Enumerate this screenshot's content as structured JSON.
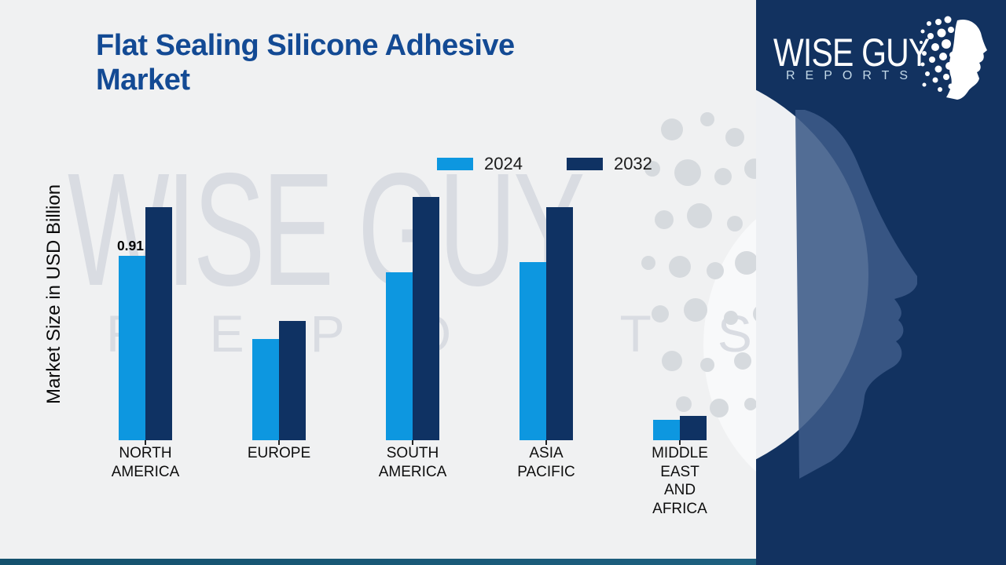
{
  "page": {
    "background": "#f0f1f2"
  },
  "header": {
    "title": "Flat Sealing Silicone Adhesive Market",
    "title_color": "#134a94"
  },
  "brand": {
    "name": "WISE GUY",
    "subtitle": "REPORTS",
    "panel_color": "#123260",
    "footer_bar_color_left": "#14516d",
    "footer_bar_color_right": "#1e6080"
  },
  "watermark": {
    "wordmark": "WISE GUY",
    "subtext": "REPORTS"
  },
  "chart_data": {
    "type": "bar",
    "title": "Flat Sealing Silicone Adhesive Market",
    "xlabel": "",
    "ylabel": "Market Size in USD Billion",
    "categories": [
      "NORTH\nAMERICA",
      "EUROPE",
      "SOUTH\nAMERICA",
      "ASIA\nPACIFIC",
      "MIDDLE\nEAST\nAND\nAFRICA"
    ],
    "series": [
      {
        "name": "2024",
        "color": "#0d97e0",
        "values": [
          0.91,
          0.5,
          0.83,
          0.88,
          0.1
        ]
      },
      {
        "name": "2032",
        "color": "#0f3263",
        "values": [
          1.15,
          0.59,
          1.2,
          1.15,
          0.12
        ]
      }
    ],
    "data_labels": [
      {
        "series_index": 0,
        "category_index": 0,
        "text": "0.91"
      }
    ],
    "ylim": [
      0,
      1.3
    ],
    "grid": false,
    "legend_position": "top"
  }
}
